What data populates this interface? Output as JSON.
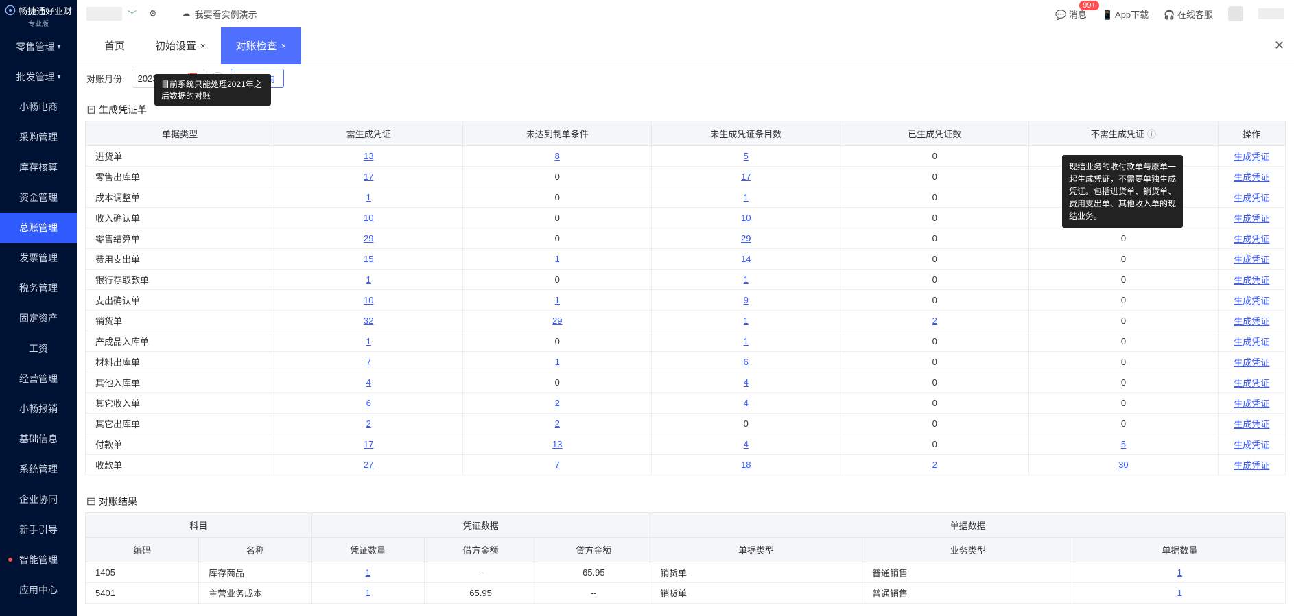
{
  "brand": {
    "name": "畅捷通好业财",
    "edition": "专业版"
  },
  "header": {
    "demo": "我要看实例演示",
    "msg": "消息",
    "msg_badge": "99+",
    "app": "App下载",
    "cs": "在线客服"
  },
  "sidebar": {
    "items": [
      {
        "label": "零售管理",
        "chev": true
      },
      {
        "label": "批发管理",
        "chev": true
      },
      {
        "label": "小畅电商"
      },
      {
        "label": "采购管理"
      },
      {
        "label": "库存核算"
      },
      {
        "label": "资金管理"
      },
      {
        "label": "总账管理",
        "active": true
      },
      {
        "label": "发票管理"
      },
      {
        "label": "税务管理"
      },
      {
        "label": "固定资产"
      },
      {
        "label": "工资"
      },
      {
        "label": "经营管理"
      },
      {
        "label": "小畅报销"
      },
      {
        "label": "基础信息"
      },
      {
        "label": "系统管理"
      },
      {
        "label": "企业协同"
      },
      {
        "label": "新手引导"
      },
      {
        "label": "智能管理",
        "dot": true
      },
      {
        "label": "应用中心"
      }
    ]
  },
  "tabs": [
    {
      "label": "首页"
    },
    {
      "label": "初始设置",
      "close": true
    },
    {
      "label": "对账检查",
      "close": true,
      "active": true
    }
  ],
  "toolbar": {
    "month_label": "对账月份:",
    "month_value": "2023-05",
    "report_btn": "报告查询",
    "tip": "目前系统只能处理2021年之后数据的对账"
  },
  "section1": "生成凭证单",
  "t1_headers": [
    "单据类型",
    "需生成凭证",
    "未达到制单条件",
    "未生成凭证条目数",
    "已生成凭证数",
    "不需生成凭证",
    "操作"
  ],
  "no_gen_tip": "现结业务的收付款单与原单一起生成凭证，不需要单独生成凭证。包括进货单、销货单、费用支出单、其他收入单的现结业务。",
  "action_label": "生成凭证",
  "t1_rows": [
    {
      "n": "进货单",
      "a": "13",
      "b": "8",
      "c": "5"
    },
    {
      "n": "零售出库单",
      "a": "17",
      "b": "0",
      "bp": true,
      "c": "17"
    },
    {
      "n": "成本调整单",
      "a": "1",
      "b": "0",
      "bp": true,
      "c": "1"
    },
    {
      "n": "收入确认单",
      "a": "10",
      "b": "0",
      "bp": true,
      "c": "10"
    },
    {
      "n": "零售结算单",
      "a": "29",
      "b": "0",
      "bp": true,
      "c": "29",
      "f": "0"
    },
    {
      "n": "费用支出单",
      "a": "15",
      "b": "1",
      "c": "14",
      "f": "0"
    },
    {
      "n": "银行存取款单",
      "a": "1",
      "b": "0",
      "bp": true,
      "c": "1",
      "f": "0"
    },
    {
      "n": "支出确认单",
      "a": "10",
      "b": "1",
      "c": "9",
      "f": "0"
    },
    {
      "n": "销货单",
      "a": "32",
      "b": "29",
      "c": "1",
      "e": "2",
      "f": "0"
    },
    {
      "n": "产成品入库单",
      "a": "1",
      "b": "0",
      "bp": true,
      "c": "1",
      "f": "0"
    },
    {
      "n": "材料出库单",
      "a": "7",
      "b": "1",
      "c": "6",
      "f": "0"
    },
    {
      "n": "其他入库单",
      "a": "4",
      "b": "0",
      "bp": true,
      "c": "4",
      "f": "0"
    },
    {
      "n": "其它收入单",
      "a": "6",
      "b": "2",
      "c": "4",
      "f": "0"
    },
    {
      "n": "其它出库单",
      "a": "2",
      "b": "2",
      "c": "0",
      "cp": true,
      "f": "0"
    },
    {
      "n": "付款单",
      "a": "17",
      "b": "13",
      "c": "4",
      "f": "5"
    },
    {
      "n": "收款单",
      "a": "27",
      "b": "7",
      "c": "18",
      "e": "2",
      "f": "30"
    }
  ],
  "section2": "对账结果",
  "t2_h1": [
    "科目",
    "凭证数据",
    "单据数据"
  ],
  "t2_h2": [
    "编码",
    "名称",
    "凭证数量",
    "借方金额",
    "贷方金额",
    "单据类型",
    "业务类型",
    "单据数量"
  ],
  "t2_rows": [
    {
      "code": "1405",
      "name": "库存商品",
      "vc": "1",
      "dr": "--",
      "cr": "65.95",
      "dt": "销货单",
      "bt": "普通销售",
      "dc": "1"
    },
    {
      "code": "5401",
      "name": "主营业务成本",
      "vc": "1",
      "dr": "65.95",
      "cr": "--",
      "dt": "销货单",
      "bt": "普通销售",
      "dc": "1"
    }
  ]
}
